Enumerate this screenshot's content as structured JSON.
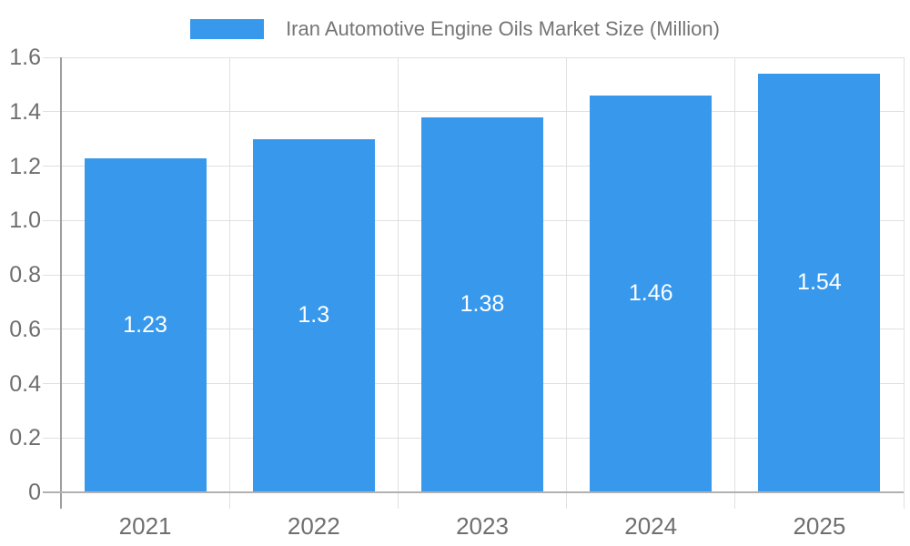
{
  "legend": {
    "label": "Iran Automotive Engine Oils Market Size (Million)"
  },
  "chart_data": {
    "type": "bar",
    "title": "Iran Automotive Engine Oils Market Size (Million)",
    "categories": [
      "2021",
      "2022",
      "2023",
      "2024",
      "2025"
    ],
    "values": [
      1.23,
      1.3,
      1.38,
      1.46,
      1.54
    ],
    "bar_labels": [
      "1.23",
      "1.3",
      "1.38",
      "1.46",
      "1.54"
    ],
    "xlabel": "",
    "ylabel": "",
    "ylim": [
      0,
      1.6
    ],
    "y_ticks": [
      0,
      0.2,
      0.4,
      0.6,
      0.8,
      1.0,
      1.2,
      1.4,
      1.6
    ],
    "y_tick_labels": [
      "0",
      "0.2",
      "0.4",
      "0.6",
      "0.8",
      "1.0",
      "1.2",
      "1.4",
      "1.6"
    ],
    "grid": true,
    "legend_position": "top-center",
    "colors": {
      "bar": "#3898EC",
      "grid": "#E0E0E0",
      "x_axis_line": "#B1B1B1",
      "y_axis_line": "#9E9E9E",
      "tick_text": "#6F6F6F",
      "legend_text": "#757575",
      "bar_label_text": "#FFFFFF"
    }
  }
}
